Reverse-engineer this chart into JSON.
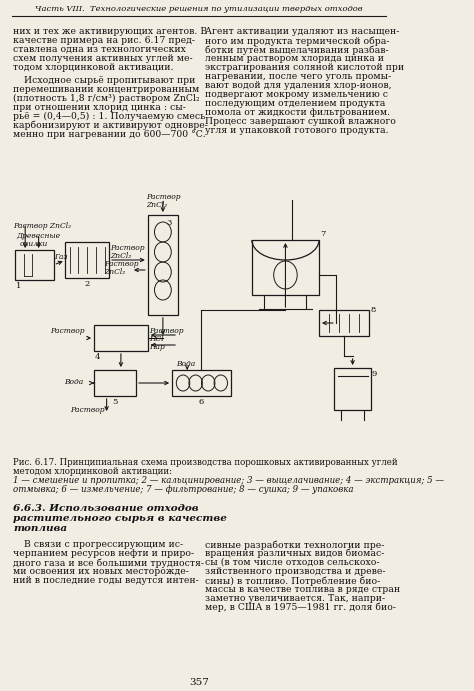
{
  "bg_color": "#f2ede3",
  "header_text": "Часть VIII.  Технологические решения по утилизации твердых отходов",
  "footer_text": "357",
  "left_col": [
    "них и тех же активирующих агентов. В",
    "качестве примера на рис. 6.17 пред-",
    "ставлена одна из технологических",
    "схем получения активных углей ме-",
    "тодом хлорцинковой активации.",
    "",
    "Исходное сырьё пропитывают при",
    "перемешивании концентрированным",
    "(плотность 1,8 г/см³) раствором ZnCl₂",
    "при отношении хлорид цинка : сы-",
    "рьё = (0,4—0,5) : 1. Получаемую смесь",
    "карбонизируют и активируют одновре-",
    "менно при нагревании до 600—700 °С."
  ],
  "right_col": [
    "Агент активации удаляют из насыщен-",
    "ного им продукта термической обра-",
    "ботки путём выщелачивания разбав-",
    "ленным раствором хлорида цинка и",
    "экстрагирования соляной кислотой при",
    "нагревании, после чего уголь промы-",
    "вают водой для удаления хлор-ионов,",
    "подвергают мокрому измельчению с",
    "последующим отделением продукта",
    "помола от жидкости фильтрованием.",
    "Процесс завершают сушкой влажного",
    "угля и упаковкой готового продукта."
  ],
  "caption_line1": "Рис. 6.17. Принципиальная схема производства порошковых активированных углей",
  "caption_line2": "методом хлорцинковой активации:",
  "caption_line3": "1 — смешение и пропитка; 2 — кальцинирование; 3 — выщелачивание; 4 — экстракция; 5 —",
  "caption_line4": "отмывка; 6 — измельчение; 7 — фильтрование; 8 — сушка; 9 — упаковка",
  "section_title": [
    "6.6.3. Использование отходов",
    "растительного сырья в качестве",
    "топлива"
  ],
  "bottom_left": [
    "В связи с прогрессирующим ис-",
    "черпанием ресурсов нефти и приро-",
    "дного газа и все большими трудностя-",
    "ми освоения их новых месторожде-",
    "ний в последние годы ведутся интен-"
  ],
  "bottom_right": [
    "сивные разработки технологии пре-",
    "вращения различных видов биомас-",
    "сы (в том числе отходов сельскохо-",
    "зяйственного производства и древе-",
    "сины) в топливо. Потребление био-",
    "массы в качестве топлива в ряде стран",
    "заметно увеличивается. Так, напри-",
    "мер, в США в 1975—1981 гг. доля био-"
  ]
}
